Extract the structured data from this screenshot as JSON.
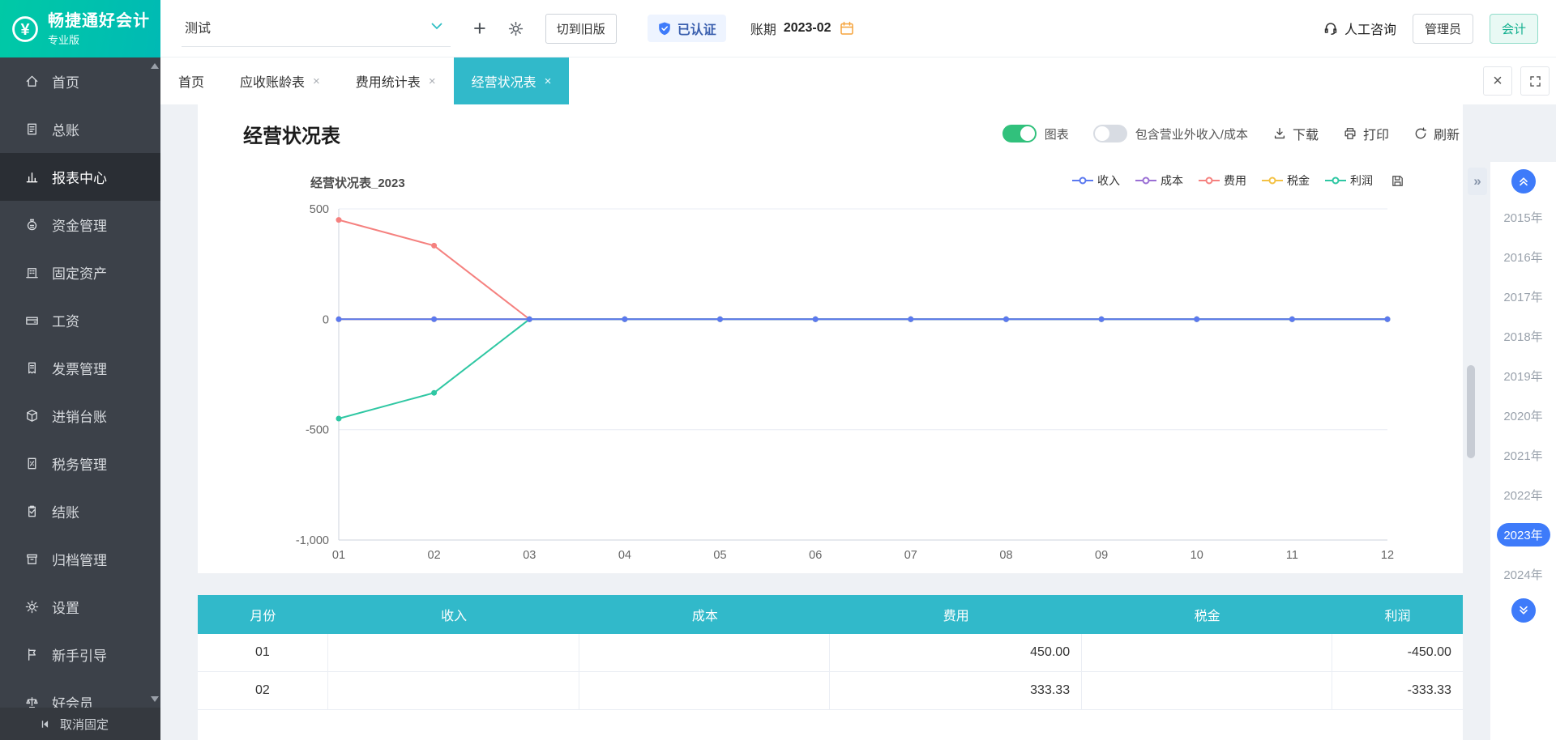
{
  "app": {
    "logo_title": "畅捷通好会计",
    "logo_subtitle": "专业版"
  },
  "header": {
    "company_selector": "测试",
    "add_button": "+",
    "switch_old_version": "切到旧版",
    "certified_badge": "已认证",
    "period_label": "账期",
    "period_value": "2023-02",
    "support": "人工咨询",
    "admin_button": "管理员",
    "accountant_button": "会计"
  },
  "icons": {
    "tab_close": "×",
    "window_close": "×",
    "expander_right": "»"
  },
  "sidebar": {
    "items": [
      {
        "label": "首页",
        "icon": "home-icon",
        "active": false
      },
      {
        "label": "总账",
        "icon": "ledger-icon",
        "active": false
      },
      {
        "label": "报表中心",
        "icon": "report-icon",
        "active": true
      },
      {
        "label": "资金管理",
        "icon": "fund-icon",
        "active": false
      },
      {
        "label": "固定资产",
        "icon": "asset-icon",
        "active": false
      },
      {
        "label": "工资",
        "icon": "salary-icon",
        "active": false
      },
      {
        "label": "发票管理",
        "icon": "invoice-icon",
        "active": false
      },
      {
        "label": "进销台账",
        "icon": "inventory-icon",
        "active": false
      },
      {
        "label": "税务管理",
        "icon": "tax-icon",
        "active": false
      },
      {
        "label": "结账",
        "icon": "closing-icon",
        "active": false
      },
      {
        "label": "归档管理",
        "icon": "archive-icon",
        "active": false
      },
      {
        "label": "设置",
        "icon": "settings-icon",
        "active": false
      },
      {
        "label": "新手引导",
        "icon": "guide-icon",
        "active": false
      },
      {
        "label": "好会员",
        "icon": "member-icon",
        "active": false
      }
    ],
    "unpin_label": "取消固定"
  },
  "tabs": {
    "items": [
      {
        "label": "首页",
        "closable": false,
        "active": false
      },
      {
        "label": "应收账龄表",
        "closable": true,
        "active": false
      },
      {
        "label": "费用统计表",
        "closable": true,
        "active": false
      },
      {
        "label": "经营状况表",
        "closable": true,
        "active": true
      }
    ]
  },
  "toolbar": {
    "page_title": "经营状况表",
    "chart_toggle": {
      "label": "图表",
      "on": true
    },
    "include_toggle": {
      "label": "包含营业外收入/成本",
      "on": false
    },
    "download_label": "下载",
    "print_label": "打印",
    "refresh_label": "刷新"
  },
  "chart_data": {
    "type": "line",
    "title": "经营状况表_2023",
    "categories": [
      "01",
      "02",
      "03",
      "04",
      "05",
      "06",
      "07",
      "08",
      "09",
      "10",
      "11",
      "12"
    ],
    "series": [
      {
        "name": "收入",
        "color": "#5b79f0",
        "values": [
          0,
          0,
          0,
          0,
          0,
          0,
          0,
          0,
          0,
          0,
          0,
          0
        ]
      },
      {
        "name": "成本",
        "color": "#9a6fd4",
        "values": [
          0,
          0,
          0,
          0,
          0,
          0,
          0,
          0,
          0,
          0,
          0,
          0
        ]
      },
      {
        "name": "费用",
        "color": "#f5817f",
        "values": [
          450,
          333.33,
          0,
          0,
          0,
          0,
          0,
          0,
          0,
          0,
          0,
          0
        ]
      },
      {
        "name": "税金",
        "color": "#f3c144",
        "values": [
          0,
          0,
          0,
          0,
          0,
          0,
          0,
          0,
          0,
          0,
          0,
          0
        ]
      },
      {
        "name": "利润",
        "color": "#2fc7a3",
        "values": [
          -450,
          -333.33,
          0,
          0,
          0,
          0,
          0,
          0,
          0,
          0,
          0,
          0
        ]
      }
    ],
    "ylim": [
      -1000,
      500
    ],
    "yticks": [
      500,
      0,
      -500,
      -1000
    ],
    "ytick_labels": [
      "500",
      "0",
      "-500",
      "-1,000"
    ],
    "legend_position": "top-right",
    "grid": true
  },
  "table": {
    "headers": [
      "月份",
      "收入",
      "成本",
      "费用",
      "税金",
      "利润"
    ],
    "rows": [
      [
        "01",
        "",
        "",
        "450.00",
        "",
        "-450.00"
      ],
      [
        "02",
        "",
        "",
        "333.33",
        "",
        "-333.33"
      ]
    ]
  },
  "year_selector": {
    "years": [
      "2015年",
      "2016年",
      "2017年",
      "2018年",
      "2019年",
      "2020年",
      "2021年",
      "2022年",
      "2023年",
      "2024年"
    ],
    "selected_index": 8
  },
  "colors": {
    "brand_teal": "#00c0a9",
    "tab_active": "#31b9ca",
    "table_header": "#31b9ca",
    "toggle_on": "#31c17c",
    "accent_blue": "#3e7bfa",
    "sidebar_bg": "#3c4149"
  }
}
